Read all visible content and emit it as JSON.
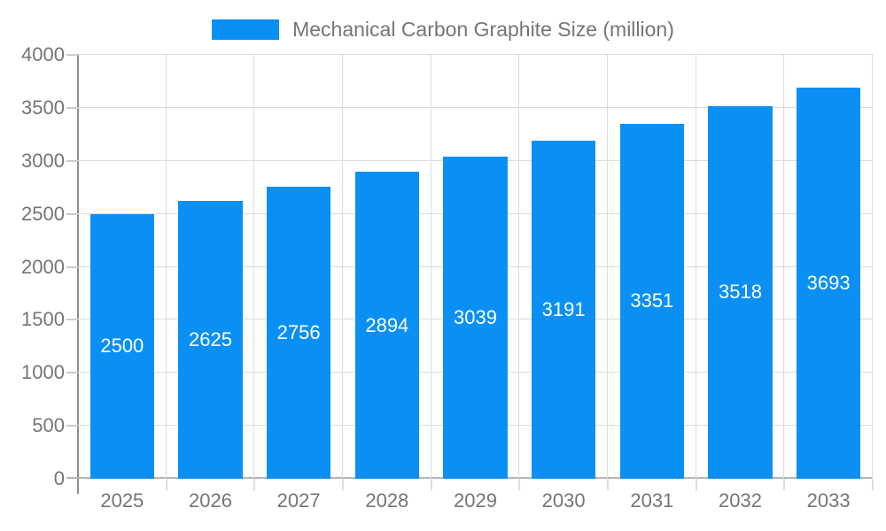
{
  "legend": {
    "label": "Mechanical Carbon Graphite Size (million)"
  },
  "chart_data": {
    "type": "bar",
    "title": "Mechanical Carbon Graphite Size (million)",
    "categories": [
      "2025",
      "2026",
      "2027",
      "2028",
      "2029",
      "2030",
      "2031",
      "2032",
      "2033"
    ],
    "values": [
      2500,
      2625,
      2756,
      2894,
      3039,
      3191,
      3351,
      3518,
      3693
    ],
    "xlabel": "",
    "ylabel": "",
    "ylim": [
      0,
      4000
    ],
    "yticks": [
      0,
      500,
      1000,
      1500,
      2000,
      2500,
      3000,
      3500,
      4000
    ],
    "grid": true,
    "legend_position": "top-center",
    "value_labels": "inside-center",
    "colors": {
      "bar": "#0A90F5",
      "gridline": "#DCDCDC",
      "y_axis_line": "#8E8E8E",
      "x_axis_line": "#B5B5B5",
      "y_tick": "#CCCCCC",
      "x_tick": "#DDDDDD",
      "axis_text": "#757575",
      "legend_text": "#757575",
      "value_label_text": "#FFFFFF",
      "background": "#FFFFFF"
    }
  }
}
